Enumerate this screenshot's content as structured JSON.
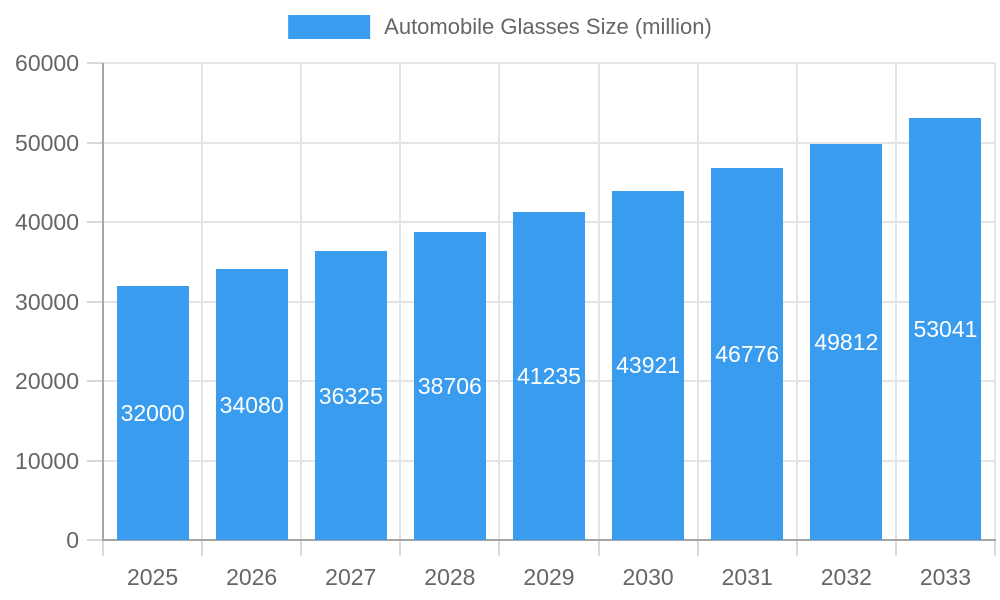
{
  "chart_data": {
    "type": "bar",
    "title": "Automobile Glasses Size (million)",
    "categories": [
      "2025",
      "2026",
      "2027",
      "2028",
      "2029",
      "2030",
      "2031",
      "2032",
      "2033"
    ],
    "series": [
      {
        "name": "Automobile Glasses Size (million)",
        "values": [
          32000,
          34080,
          36325,
          38706,
          41235,
          43921,
          46776,
          49812,
          53041
        ]
      }
    ],
    "value_labels_shown": true,
    "xlabel": "",
    "ylabel": "",
    "ylim": [
      0,
      60000
    ],
    "yticks": [
      0,
      10000,
      20000,
      30000,
      40000,
      50000,
      60000
    ],
    "grid": true,
    "legend_position": "top-center",
    "colors": {
      "bar": "#3A9CEE",
      "value_label_text": "#FFFFFF",
      "grid_line": "#E4E4E4",
      "tick_mark": "#D9D9D9",
      "axis_line": "#A6A6A6",
      "tick_text": "#666666",
      "legend_text": "#666666",
      "background": "#FFFFFF"
    }
  }
}
